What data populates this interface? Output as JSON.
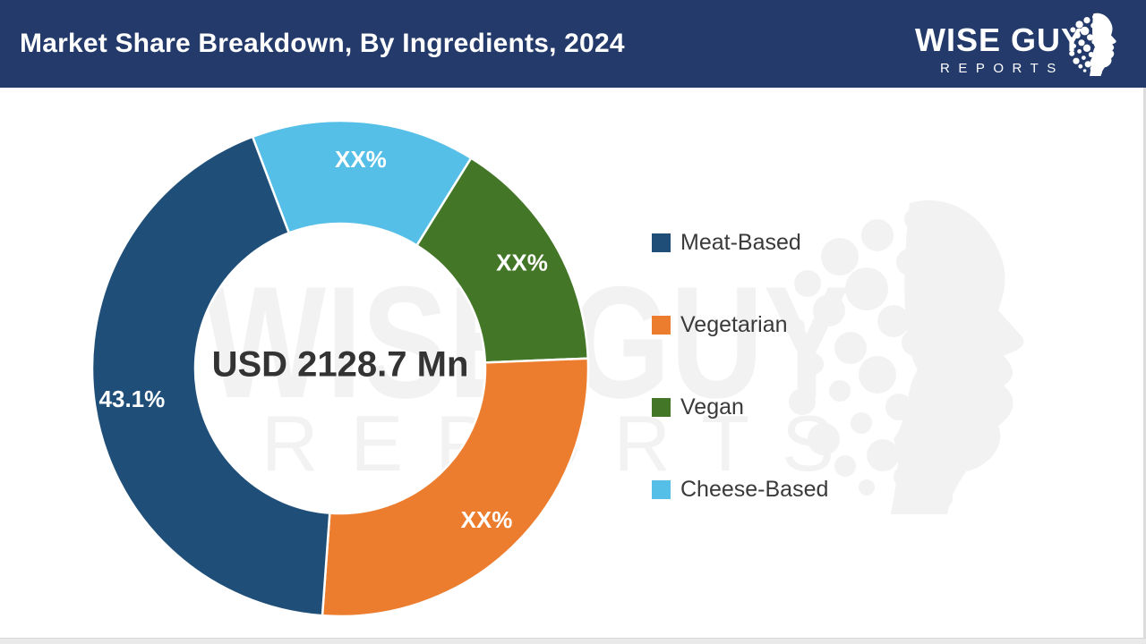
{
  "header": {
    "title": "Market Share Breakdown, By Ingredients, 2024",
    "logo": {
      "line1": "WISE GUY",
      "line2": "REPORTS"
    }
  },
  "watermark": {
    "line1": "WISE GUY",
    "line2": "REPORTS"
  },
  "chart_data": {
    "type": "donut",
    "title": "Market Share Breakdown, By Ingredients, 2024",
    "center_label": "USD 2128.7 Mn",
    "start_angle_clockwise_from_north": -20.7,
    "legend_position": "right",
    "segments": [
      {
        "name": "Cheese-Based",
        "value": 14.6,
        "display_label": "XX%",
        "color": "#55BFE8"
      },
      {
        "name": "Vegan",
        "value": 15.5,
        "display_label": "XX%",
        "color": "#447628"
      },
      {
        "name": "Vegetarian",
        "value": 26.8,
        "display_label": "XX%",
        "color": "#EC7D2E"
      },
      {
        "name": "Meat-Based",
        "value": 43.1,
        "display_label": "43.1%",
        "color": "#1F4F78"
      }
    ],
    "legend": [
      {
        "label": "Meat-Based",
        "color": "#1F4F78"
      },
      {
        "label": "Vegetarian",
        "color": "#EC7D2E"
      },
      {
        "label": "Vegan",
        "color": "#447628"
      },
      {
        "label": "Cheese-Based",
        "color": "#55BFE8"
      }
    ]
  }
}
